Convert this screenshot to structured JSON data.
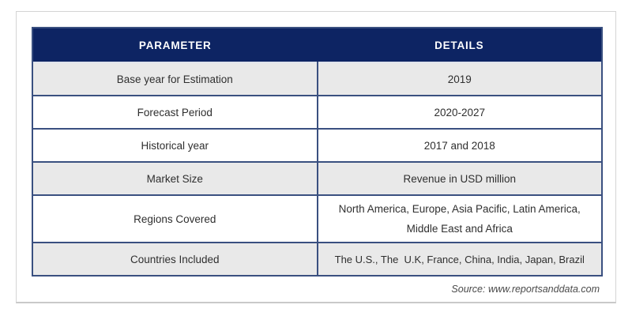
{
  "table": {
    "header": {
      "parameter": "PARAMETER",
      "details": "DETAILS"
    },
    "rows": [
      {
        "parameter": "Base year for Estimation",
        "details": "2019"
      },
      {
        "parameter": "Forecast Period",
        "details": "2020-2027"
      },
      {
        "parameter": "Historical year",
        "details": "2017 and 2018"
      },
      {
        "parameter": "Market Size",
        "details": "Revenue in USD million"
      },
      {
        "parameter": "Regions Covered",
        "details": "North America, Europe, Asia Pacific, Latin America, Middle East and Africa"
      },
      {
        "parameter": "Countries Included",
        "details": "The U.S., The  U.K, France, China, India, Japan, Brazil"
      }
    ]
  },
  "source": {
    "label": "Source: www.reportsanddata.com"
  },
  "colors": {
    "header_bg": "#0d2463",
    "header_text": "#ffffff",
    "shaded_row_bg": "#e9e9e9",
    "table_border": "#3a5080",
    "body_text": "#2f2f2f",
    "source_text": "#4a4a4a",
    "card_border": "#d4d4d4"
  }
}
